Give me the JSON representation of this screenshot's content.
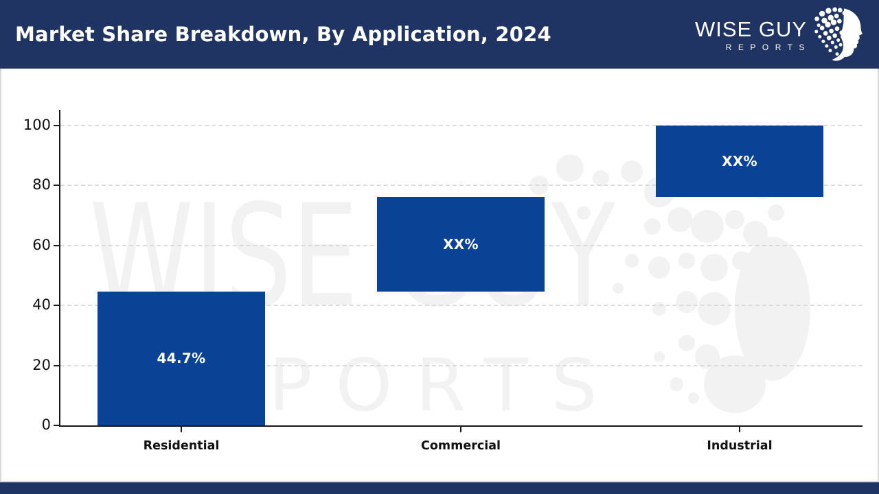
{
  "header": {
    "title": "Market Share Breakdown, By Application, 2024",
    "logo": {
      "line1": "WISE GUY",
      "line2": "REPORTS"
    }
  },
  "watermark": {
    "line1": "WISE GUY",
    "line2": "REPORTS"
  },
  "chart_data": {
    "type": "bar",
    "subtype": "floating-waterfall",
    "title": "Market Share Breakdown, By Application, 2024",
    "categories": [
      "Residential",
      "Commercial",
      "Industrial"
    ],
    "segments": [
      {
        "category": "Residential",
        "start": 0,
        "end": 44.7,
        "label": "44.7%"
      },
      {
        "category": "Commercial",
        "start": 44.7,
        "end": 76.3,
        "label": "XX%"
      },
      {
        "category": "Industrial",
        "start": 76.3,
        "end": 100,
        "label": "XX%"
      }
    ],
    "xlabel": "",
    "ylabel": "",
    "ylim": [
      0,
      100
    ],
    "yticks": [
      0,
      20,
      40,
      60,
      80,
      100
    ],
    "grid": "horizontal-dashed",
    "legend": "none",
    "colors": {
      "bar": "#0a4296",
      "header": "#1f3462",
      "grid": "#dcdcdc",
      "axis": "#1a1a1a",
      "watermark": "#f2f2f2",
      "bar_label": "#ffffff"
    }
  }
}
